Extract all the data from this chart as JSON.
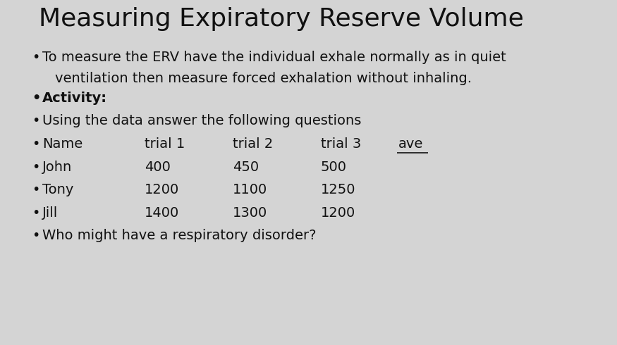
{
  "title": "Measuring Expiratory Reserve Volume",
  "background_color": "#d4d4d4",
  "title_color": "#1a1a1a",
  "text_color": "#111111",
  "title_fontsize": 26,
  "body_fontsize": 14,
  "table_header": [
    "Name",
    "trial 1",
    "trial 2",
    "trial 3",
    "ave"
  ],
  "table_rows": [
    [
      "John",
      "400",
      "450",
      "500"
    ],
    [
      "Tony",
      "1200",
      "1100",
      "1250"
    ],
    [
      "Jill",
      "1400",
      "1300",
      "1200"
    ]
  ],
  "last_bullet": "Who might have a respiratory disorder?",
  "col_x_inches": [
    0.55,
    2.05,
    3.3,
    4.55,
    5.65
  ],
  "ave_underline": true
}
